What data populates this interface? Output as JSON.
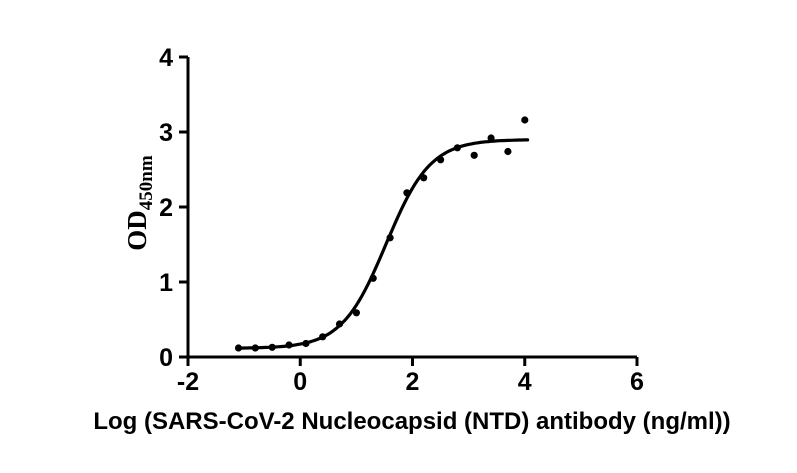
{
  "figure": {
    "background_color": "#ffffff"
  },
  "chart_data": {
    "type": "scatter",
    "title": "",
    "xlabel": "Log (SARS-CoV-2 Nucleocapsid (NTD) antibody (ng/ml))",
    "ylabel_main": "OD",
    "ylabel_sub": "450nm",
    "xlim": [
      -2,
      6
    ],
    "ylim": [
      0,
      4
    ],
    "xticks": [
      -2,
      0,
      2,
      4,
      6
    ],
    "yticks": [
      0,
      1,
      2,
      3,
      4
    ],
    "grid": false,
    "legend": "none",
    "colors": {
      "marker": "#000000",
      "line": "#000000",
      "axis": "#000000",
      "text": "#000000",
      "background": "#ffffff"
    },
    "series": [
      {
        "name": "SARS-CoV-2 Nucleocapsid (NTD) antibody",
        "x": [
          -1.1,
          -0.8,
          -0.5,
          -0.2,
          0.1,
          0.4,
          0.7,
          1.0,
          1.3,
          1.6,
          1.9,
          2.2,
          2.5,
          2.8,
          3.1,
          3.4,
          3.7,
          4.0
        ],
        "y": [
          0.12,
          0.12,
          0.13,
          0.16,
          0.18,
          0.27,
          0.44,
          0.59,
          1.05,
          1.59,
          2.19,
          2.39,
          2.63,
          2.79,
          2.69,
          2.92,
          2.74,
          3.16
        ]
      }
    ],
    "fit_curve": {
      "model": "four-parameter-logistic",
      "bottom": 0.115,
      "top": 2.9,
      "logEC50": 1.53,
      "hillslope": 1.1,
      "x_start": -1.1,
      "x_end": 4.05
    }
  }
}
